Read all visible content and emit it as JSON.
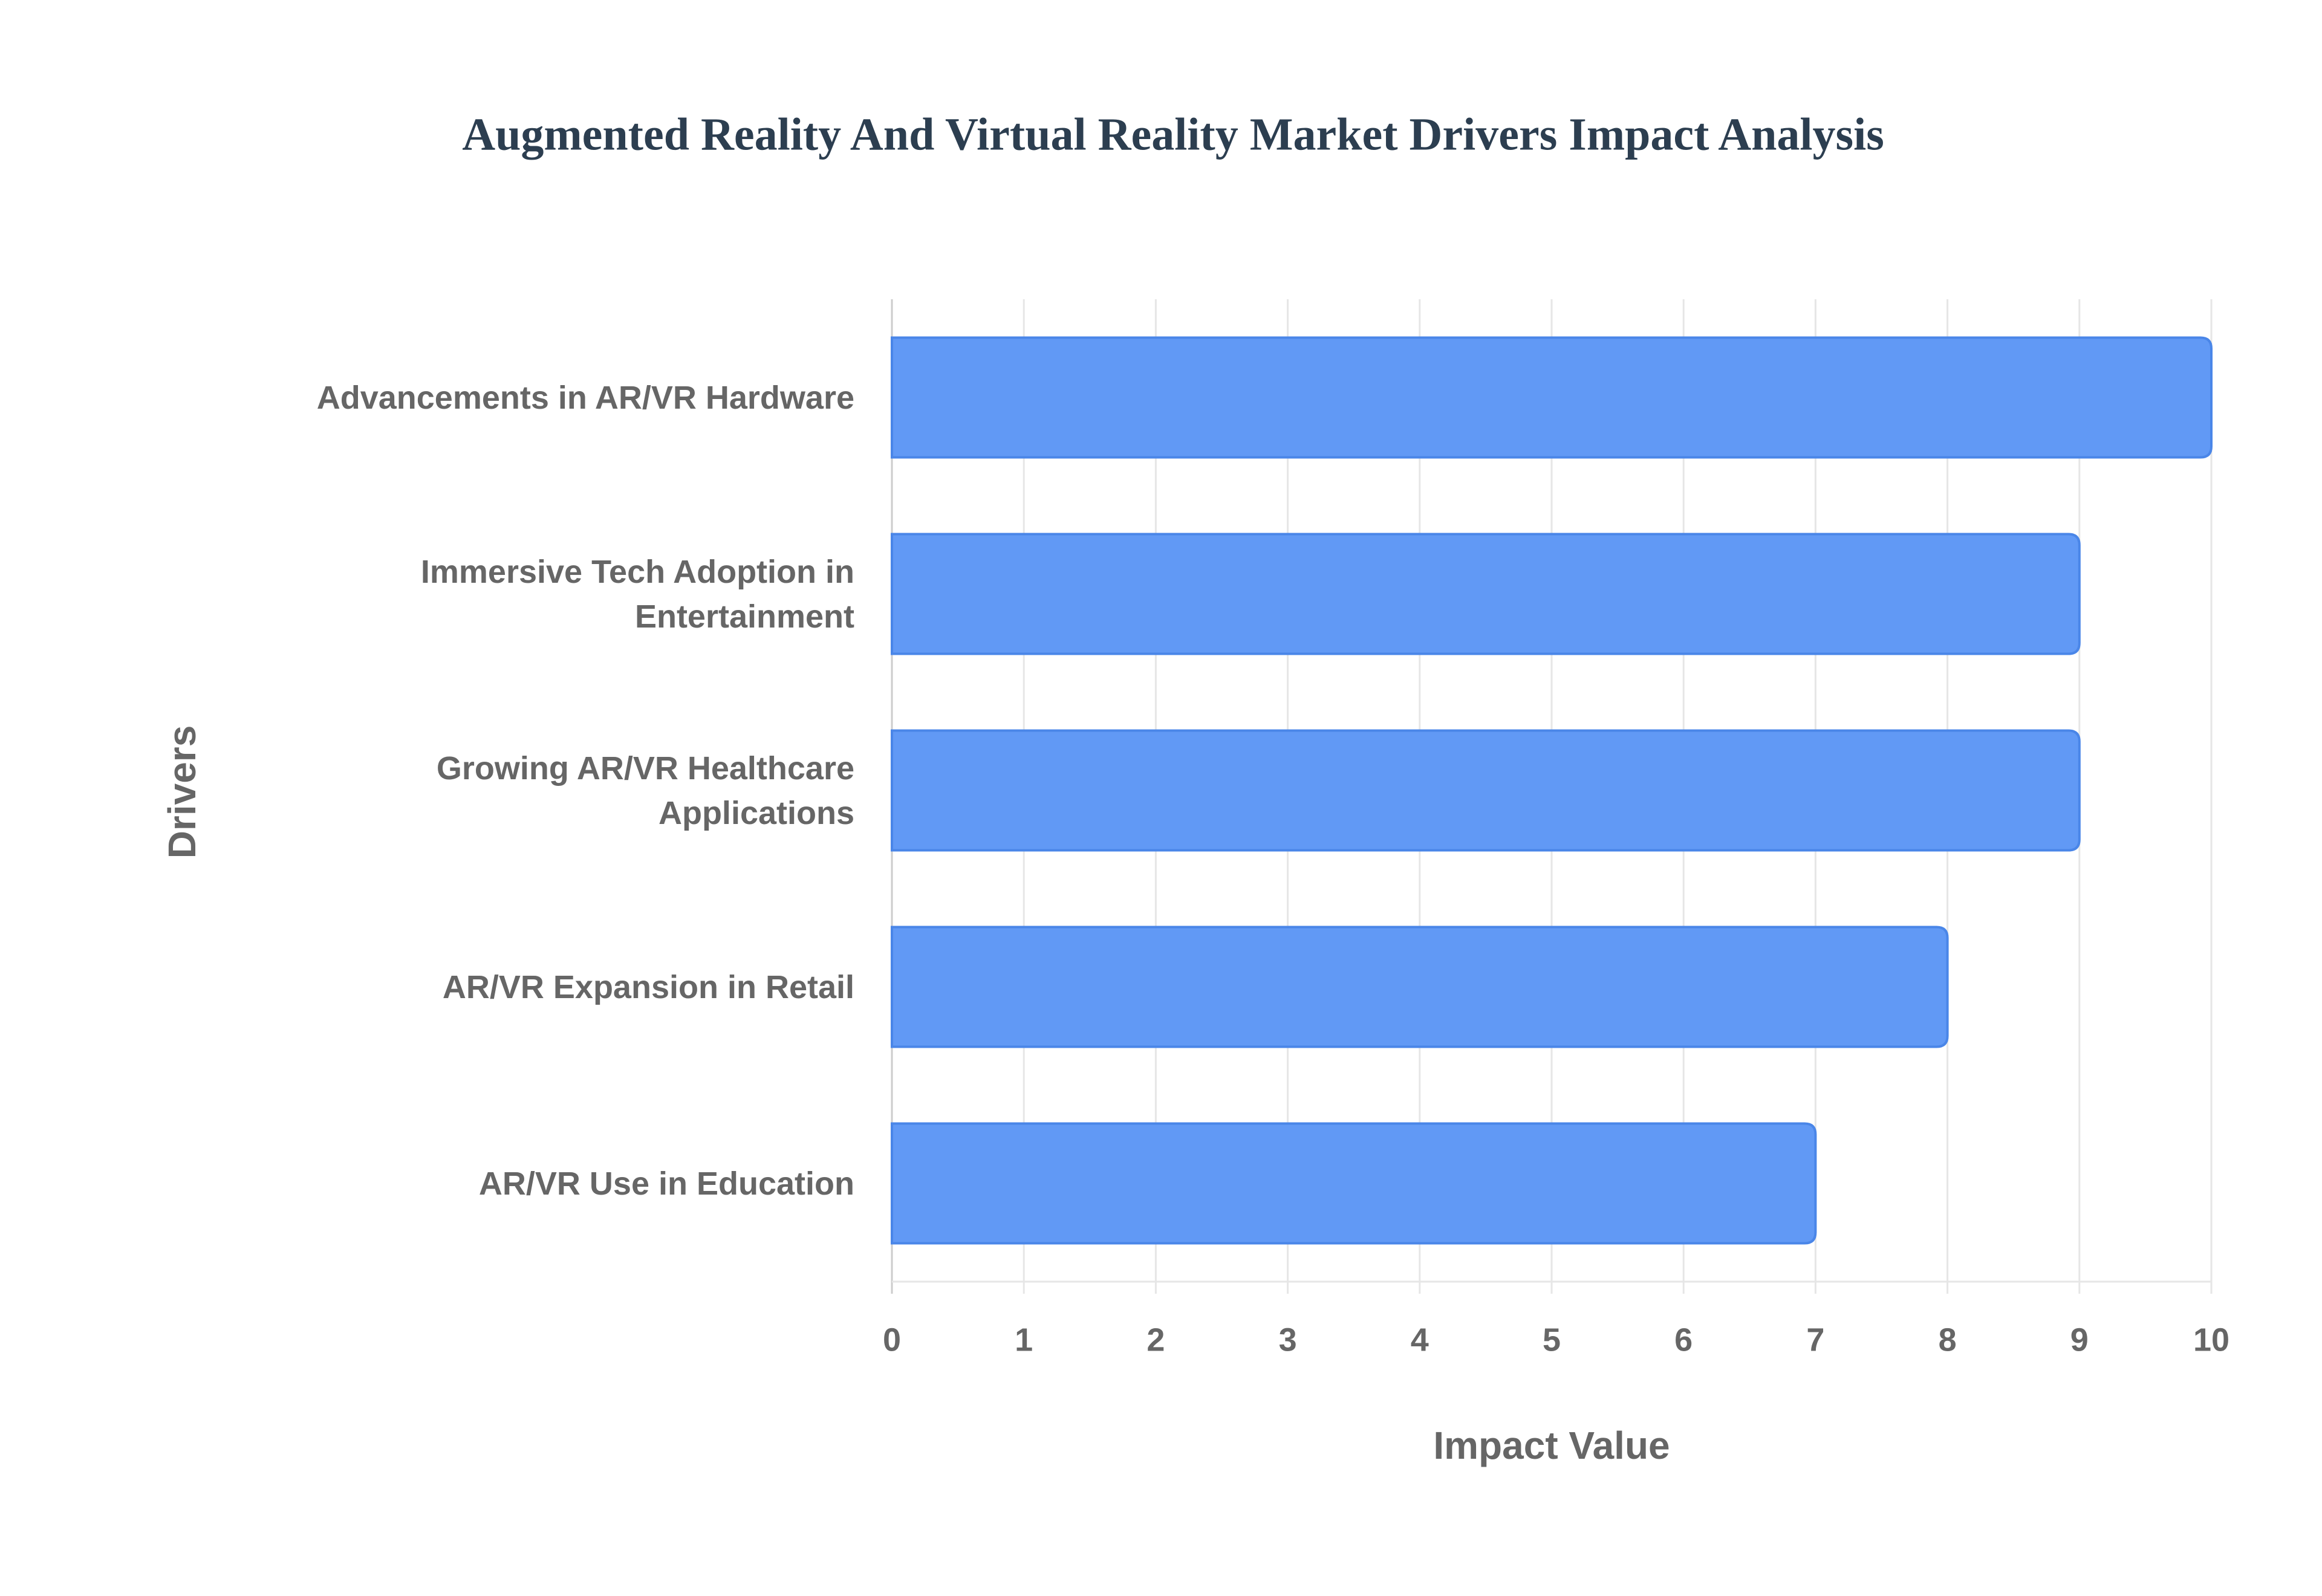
{
  "chart_data": {
    "type": "bar",
    "orientation": "horizontal",
    "title": "Augmented Reality And Virtual Reality Market Drivers Impact Analysis",
    "x_label": "Impact Value",
    "y_label": "Drivers",
    "categories": [
      "Advancements in AR/VR Hardware",
      "Immersive Tech Adoption in Entertainment",
      "Growing AR/VR Healthcare Applications",
      "AR/VR Expansion in Retail",
      "AR/VR Use in Education"
    ],
    "values": [
      10,
      9,
      9,
      8,
      7
    ],
    "color": "#6199f5",
    "edge_color": "#4a86e8",
    "xlim": [
      0,
      10
    ],
    "xticks": [
      0,
      1,
      2,
      3,
      4,
      5,
      6,
      7,
      8,
      9,
      10
    ],
    "grid": true
  }
}
